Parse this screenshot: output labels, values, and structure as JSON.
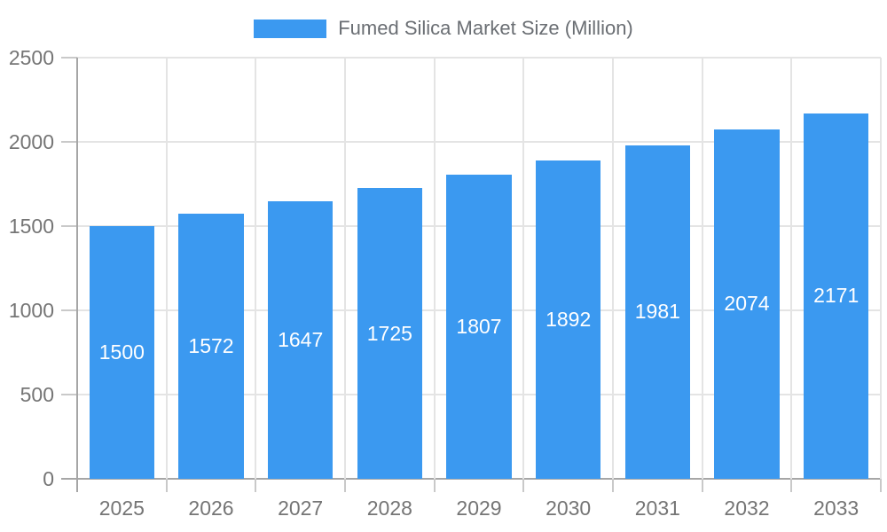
{
  "chart_data": {
    "type": "bar",
    "title": "Fumed Silica Market Size (Million)",
    "categories": [
      "2025",
      "2026",
      "2027",
      "2028",
      "2029",
      "2030",
      "2031",
      "2032",
      "2033"
    ],
    "values": [
      1500,
      1572,
      1647,
      1725,
      1807,
      1892,
      1981,
      2074,
      2171
    ],
    "xlabel": "",
    "ylabel": "",
    "ylim": [
      0,
      2500
    ],
    "yticks": [
      0,
      500,
      1000,
      1500,
      2000,
      2500
    ],
    "grid": true,
    "bar_labels_inside": true,
    "legend_position": "top-center",
    "colors": {
      "bar": "#3b99f0",
      "bar_label_text": "#ffffff",
      "axis_line": "#a6a6a6",
      "gridline": "#e4e4e4",
      "tick_mark": "#c9c9c9",
      "tick_label_text": "#757575",
      "legend_text": "#6a6e73",
      "background": "#ffffff"
    }
  }
}
